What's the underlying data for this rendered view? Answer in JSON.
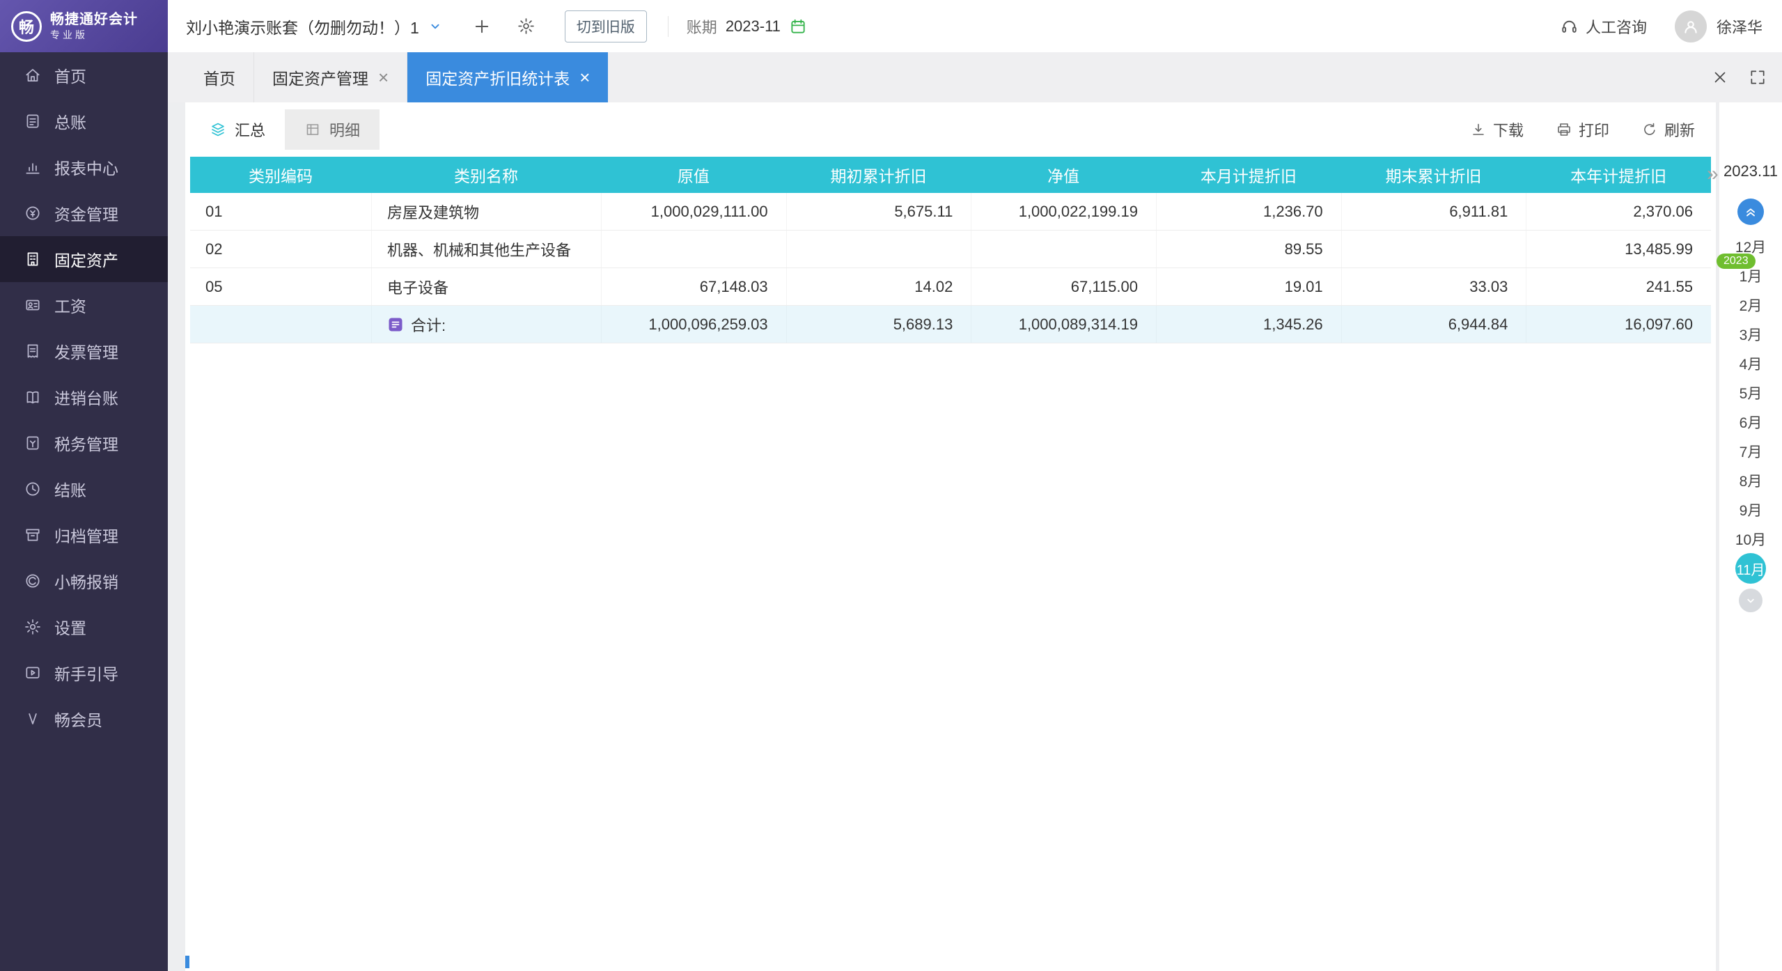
{
  "colors": {
    "teal": "#2FC2D4",
    "blue": "#3A8BDE",
    "green_badge": "#6FBE2F",
    "sidebar_bg": "#312E48",
    "sidebar_active_bg": "#211E31",
    "active_tab_bg": "#3A8BDE",
    "table_header_bg": "#2FC2D4",
    "total_row_bg": "#E9F6FB",
    "total_icon_purple": "#7B5BC9"
  },
  "logo": {
    "mark": "畅",
    "title": "畅捷通好会计",
    "subtitle": "专业版"
  },
  "topbar": {
    "account_set": "刘小艳演示账套（勿删勿动！）1",
    "switch_old": "切到旧版",
    "period_label": "账期",
    "period_value": "2023-11",
    "support_label": "人工咨询",
    "username": "徐泽华"
  },
  "icons": {
    "topbar": [
      "chevron-down-icon",
      "plus-icon",
      "gear-icon",
      "calendar-icon",
      "headset-icon",
      "person-icon"
    ],
    "tabbar_right": [
      "close-all-icon",
      "fullscreen-icon"
    ],
    "period_panel": [
      "collapse-icon",
      "scroll-up-icon",
      "scroll-down-icon"
    ],
    "total_row": "calculator-icon"
  },
  "sidebar": {
    "items": [
      {
        "label": "首页",
        "icon": "home-icon",
        "active": false
      },
      {
        "label": "总账",
        "icon": "ledger-icon",
        "active": false
      },
      {
        "label": "报表中心",
        "icon": "report-icon",
        "active": false
      },
      {
        "label": "资金管理",
        "icon": "funds-icon",
        "active": false
      },
      {
        "label": "固定资产",
        "icon": "fixed-assets-icon",
        "active": true
      },
      {
        "label": "工资",
        "icon": "payroll-icon",
        "active": false
      },
      {
        "label": "发票管理",
        "icon": "invoice-icon",
        "active": false
      },
      {
        "label": "进销台账",
        "icon": "purchase-sale-icon",
        "active": false
      },
      {
        "label": "税务管理",
        "icon": "tax-icon",
        "active": false
      },
      {
        "label": "结账",
        "icon": "closing-icon",
        "active": false
      },
      {
        "label": "归档管理",
        "icon": "archive-icon",
        "active": false
      },
      {
        "label": "小畅报销",
        "icon": "reimburse-icon",
        "active": false
      },
      {
        "label": "设置",
        "icon": "settings-icon",
        "active": false
      },
      {
        "label": "新手引导",
        "icon": "guide-icon",
        "active": false
      },
      {
        "label": "畅会员",
        "icon": "member-icon",
        "active": false
      }
    ]
  },
  "tabs": [
    {
      "label": "首页",
      "closable": false,
      "active": false
    },
    {
      "label": "固定资产管理",
      "closable": true,
      "active": false
    },
    {
      "label": "固定资产折旧统计表",
      "closable": true,
      "active": true
    }
  ],
  "toolbar": {
    "views": [
      {
        "label": "汇总",
        "icon": "summary-icon",
        "active": true
      },
      {
        "label": "明细",
        "icon": "detail-icon",
        "active": false
      }
    ],
    "actions": [
      {
        "label": "下载",
        "icon": "download-icon"
      },
      {
        "label": "打印",
        "icon": "print-icon"
      },
      {
        "label": "刷新",
        "icon": "refresh-icon"
      }
    ]
  },
  "table": {
    "columns": [
      "类别编码",
      "类别名称",
      "原值",
      "期初累计折旧",
      "净值",
      "本月计提折旧",
      "期末累计折旧",
      "本年计提折旧"
    ],
    "rows": [
      [
        "01",
        "房屋及建筑物",
        "1,000,029,111.00",
        "5,675.11",
        "1,000,022,199.19",
        "1,236.70",
        "6,911.81",
        "2,370.06"
      ],
      [
        "02",
        "机器、机械和其他生产设备",
        "",
        "",
        "",
        "89.55",
        "",
        "13,485.99"
      ],
      [
        "05",
        "电子设备",
        "67,148.03",
        "14.02",
        "67,115.00",
        "19.01",
        "33.03",
        "241.55"
      ]
    ],
    "total": {
      "label": "合计:",
      "values": [
        "1,000,096,259.03",
        "5,689.13",
        "1,000,089,314.19",
        "1,345.26",
        "6,944.84",
        "16,097.60"
      ]
    }
  },
  "period_panel": {
    "current": "2023.11",
    "collapse_glyph": "»",
    "year_badge": "2023",
    "months": [
      "12月",
      "1月",
      "2月",
      "3月",
      "4月",
      "5月",
      "6月",
      "7月",
      "8月",
      "9月",
      "10月",
      "11月"
    ],
    "selected_month": "11月"
  }
}
